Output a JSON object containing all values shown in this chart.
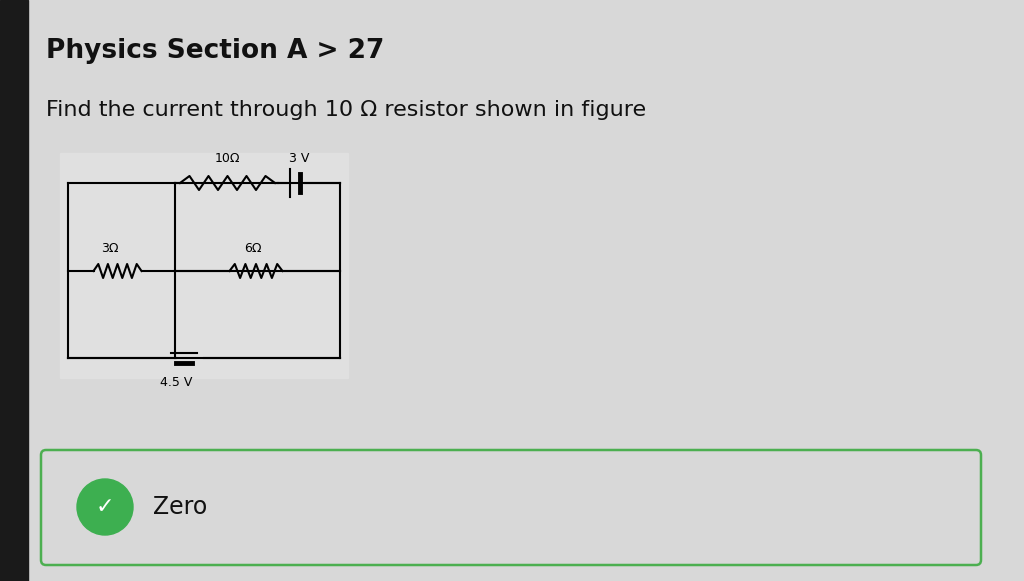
{
  "title": "Physics Section A > 27",
  "question": "Find the current through 10 Ω resistor shown in figure",
  "title_fontsize": 19,
  "question_fontsize": 16,
  "bg_color": "#d8d8d8",
  "left_panel_color": "#1a1a1a",
  "answer_text": "Zero",
  "answer_fontsize": 17,
  "answer_circle_color": "#3daf50",
  "circuit": {
    "r3_label": "3Ω",
    "r10_label": "10Ω",
    "r6_label": "6Ω",
    "bat3_label": "3 V",
    "bat45_label": "4.5 V"
  }
}
